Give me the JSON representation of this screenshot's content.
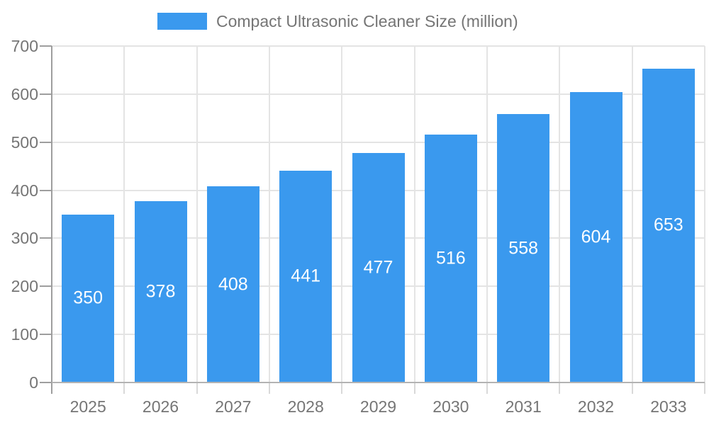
{
  "legend": {
    "label": "Compact Ultrasonic Cleaner Size (million)"
  },
  "chart_data": {
    "type": "bar",
    "title": "Compact Ultrasonic Cleaner Size (million)",
    "categories": [
      "2025",
      "2026",
      "2027",
      "2028",
      "2029",
      "2030",
      "2031",
      "2032",
      "2033"
    ],
    "values": [
      350,
      378,
      408,
      441,
      477,
      516,
      558,
      604,
      653
    ],
    "xlabel": "",
    "ylabel": "",
    "ylim": [
      0,
      700
    ],
    "yticks": [
      0,
      100,
      200,
      300,
      400,
      500,
      600,
      700
    ],
    "grid": true,
    "legend_position": "top",
    "value_label_position": "inside-center",
    "colors": {
      "bar": "#3a99ee",
      "grid": "#e4e4e4",
      "axis_line": "#9e9e9e",
      "baseline": "#b3b3b3",
      "category_tick": "#d9d9d9",
      "tick_text": "#757575",
      "value_text": "#ffffff",
      "background": "#ffffff"
    }
  }
}
